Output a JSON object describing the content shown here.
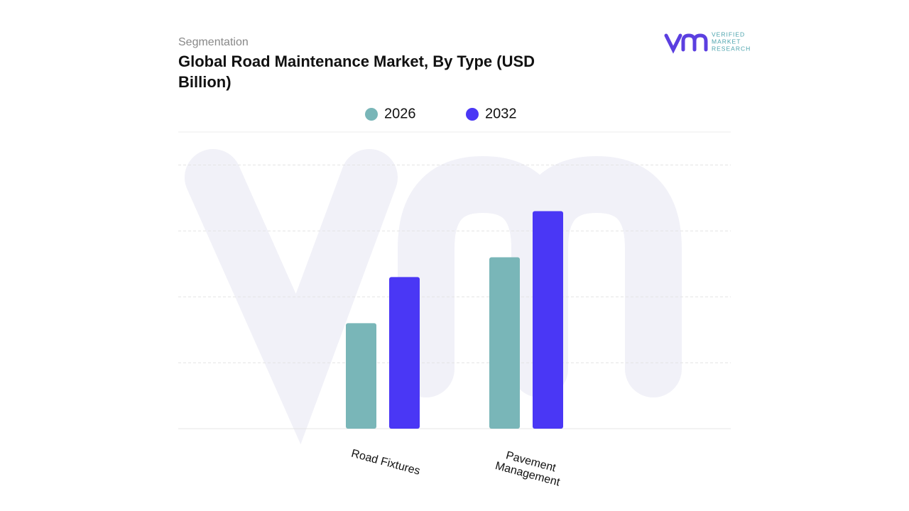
{
  "subtitle": "Segmentation",
  "logo": {
    "lines": [
      "VERIFIED",
      "MARKET",
      "RESEARCH"
    ]
  },
  "chart_data": {
    "type": "bar",
    "title": "Global Road Maintenance Market, By Type (USD Billion)",
    "categories": [
      "Road Fixtures",
      "Pavement Management"
    ],
    "series": [
      {
        "name": "2026",
        "color": "#79b6b8",
        "values": [
          1.6,
          2.6
        ]
      },
      {
        "name": "2032",
        "color": "#4a37f5",
        "values": [
          2.3,
          3.3
        ]
      }
    ],
    "ylim": [
      0,
      4.5
    ],
    "yticks": [
      0,
      1,
      2,
      3,
      4
    ],
    "grid": true
  }
}
